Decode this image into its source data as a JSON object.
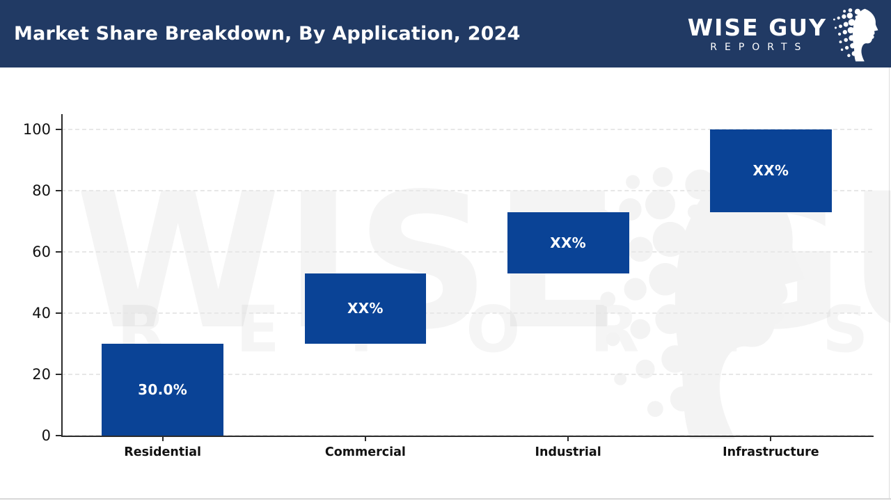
{
  "header": {
    "title": "Market Share Breakdown, By Application, 2024",
    "bg_color": "#213a64",
    "logo": {
      "line1": "WISE GUY",
      "line2": "REPORTS",
      "head_icon": "dotted-head-profile"
    }
  },
  "watermark": {
    "line1": "WISE GUY",
    "line2": "R E P O R T S",
    "head_icon": "dotted-head-profile"
  },
  "chart_data": {
    "type": "bar",
    "subtype": "floating-waterfall",
    "title": "Market Share Breakdown, By Application, 2024",
    "categories": [
      "Residential",
      "Commercial",
      "Industrial",
      "Infrastructure"
    ],
    "bars": [
      {
        "category": "Residential",
        "start": 0,
        "end": 30,
        "label": "30.0%"
      },
      {
        "category": "Commercial",
        "start": 30,
        "end": 53,
        "label": "XX%"
      },
      {
        "category": "Industrial",
        "start": 53,
        "end": 73,
        "label": "XX%"
      },
      {
        "category": "Infrastructure",
        "start": 73,
        "end": 100,
        "label": "XX%"
      }
    ],
    "yticks": [
      0,
      20,
      40,
      60,
      80,
      100
    ],
    "ylim": [
      0,
      105
    ],
    "xlabel": "",
    "ylabel": "",
    "grid": "horizontal-dashed",
    "legend": "none",
    "bar_color": "#0a4396",
    "bar_label_color": "#ffffff",
    "axis_color": "#2b2b2b",
    "grid_color": "#e7e7e7",
    "tick_label_color": "#111111"
  }
}
